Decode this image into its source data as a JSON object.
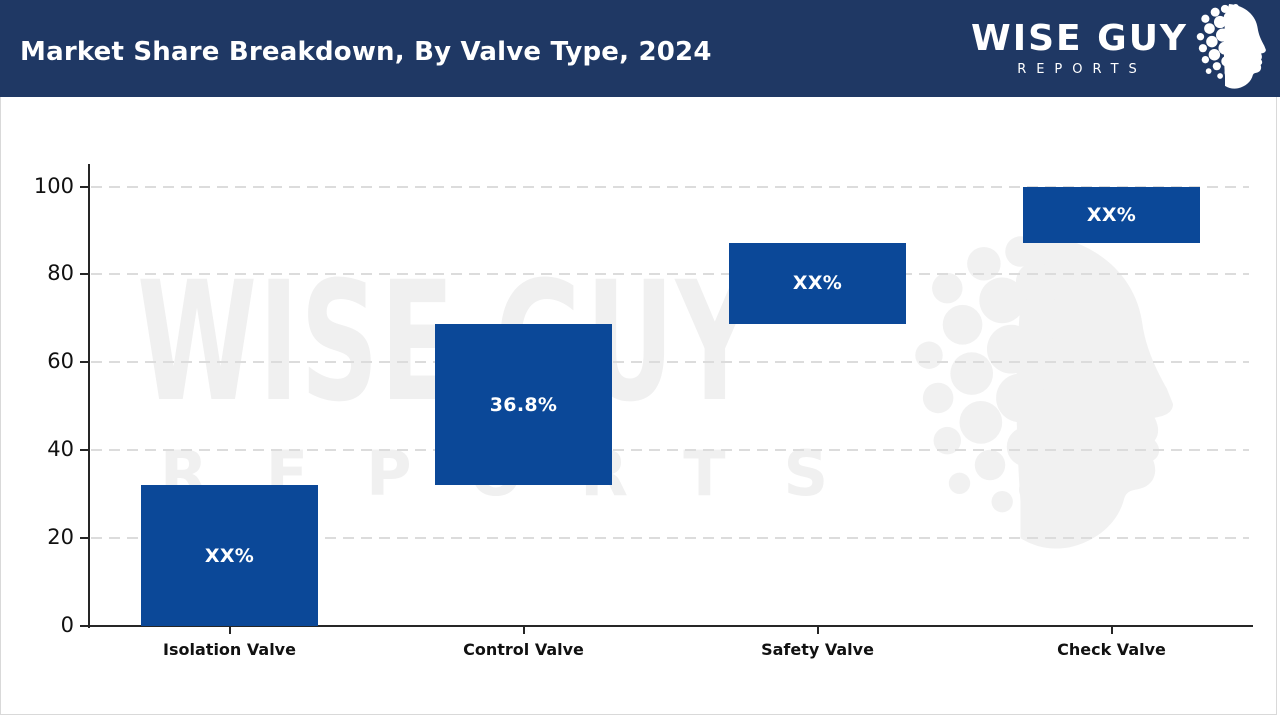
{
  "header": {
    "title": "Market Share Breakdown, By Valve Type, 2024",
    "brand": {
      "name": "WISE GUY",
      "sub": "REPORTS"
    }
  },
  "watermark": {
    "big": "WISE GUY",
    "sub": "REPORTS"
  },
  "icons": {
    "brand_head": "dotted-head-profile"
  },
  "colors": {
    "header_bg": "#1f3864",
    "bar": "#0b4898",
    "grid": "#dcdcdc",
    "axis": "#262626",
    "watermark": "#f0f0f0",
    "bar_label": "#ffffff"
  },
  "chart_data": {
    "type": "bar",
    "subtype": "waterfall",
    "title": "Market Share Breakdown, By Valve Type, 2024",
    "categories": [
      "Isolation Valve",
      "Control Valve",
      "Safety Valve",
      "Check Valve"
    ],
    "segments": [
      {
        "category": "Isolation Valve",
        "start": 0,
        "end": 32.0,
        "value": 32.0,
        "label": "XX%"
      },
      {
        "category": "Control Valve",
        "start": 32.0,
        "end": 68.8,
        "value": 36.8,
        "label": "36.8%"
      },
      {
        "category": "Safety Valve",
        "start": 68.8,
        "end": 87.2,
        "value": 18.4,
        "label": "XX%"
      },
      {
        "category": "Check Valve",
        "start": 87.2,
        "end": 100.0,
        "value": 12.8,
        "label": "XX%"
      }
    ],
    "yticks": [
      0,
      20,
      40,
      60,
      80,
      100
    ],
    "ylim": [
      0,
      105
    ],
    "xlabel": "",
    "ylabel": "",
    "grid": "horizontal-dashed",
    "legend": "none",
    "bar_color": "#0b4898",
    "label_color": "#ffffff"
  }
}
